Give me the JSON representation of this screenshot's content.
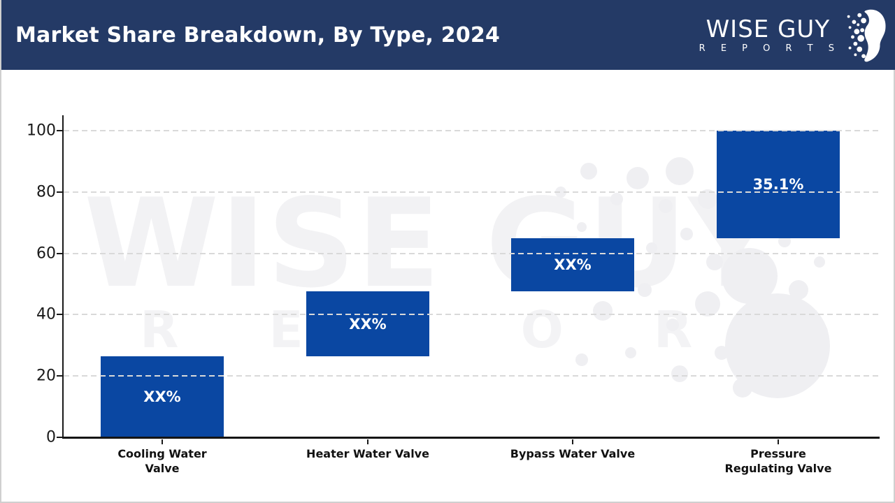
{
  "header": {
    "title": "Market Share Breakdown, By Type, 2024",
    "logo": {
      "name": "WISE GUY",
      "tagline": "R E P O R T S"
    }
  },
  "watermark": {
    "name": "WISE GUY",
    "tagline": "R E P O R T S"
  },
  "colors": {
    "header_bg": "#243a66",
    "bar": "#0a47a2",
    "bar_label": "#ffffff",
    "grid": "#d9d9d9",
    "axis": "#1a1a1a",
    "watermark": "#f2f2f4"
  },
  "chart_data": {
    "type": "bar",
    "variant": "floating-waterfall",
    "title": "Market Share Breakdown, By Type, 2024",
    "categories": [
      "Cooling Water Valve",
      "Heater Water Valve",
      "Bypass Water Valve",
      "Pressure Regulating Valve"
    ],
    "category_label_lines": [
      [
        "Cooling Water",
        "Valve"
      ],
      [
        "Heater Water Valve"
      ],
      [
        "Bypass Water Valve"
      ],
      [
        "Pressure",
        "Regulating Valve"
      ]
    ],
    "segments": [
      {
        "category": "Cooling Water Valve",
        "start": 0,
        "end": 26.5,
        "label": "XX%"
      },
      {
        "category": "Heater Water Valve",
        "start": 26.5,
        "end": 47.5,
        "label": "XX%"
      },
      {
        "category": "Bypass Water Valve",
        "start": 47.5,
        "end": 64.9,
        "label": "XX%"
      },
      {
        "category": "Pressure Regulating Valve",
        "start": 64.9,
        "end": 100,
        "label": "35.1%"
      }
    ],
    "yticks": [
      0,
      20,
      40,
      60,
      80,
      100
    ],
    "ylim": [
      0,
      100
    ],
    "xlabel": "",
    "ylabel": "",
    "grid": "horizontal-dashed",
    "legend": "none"
  }
}
